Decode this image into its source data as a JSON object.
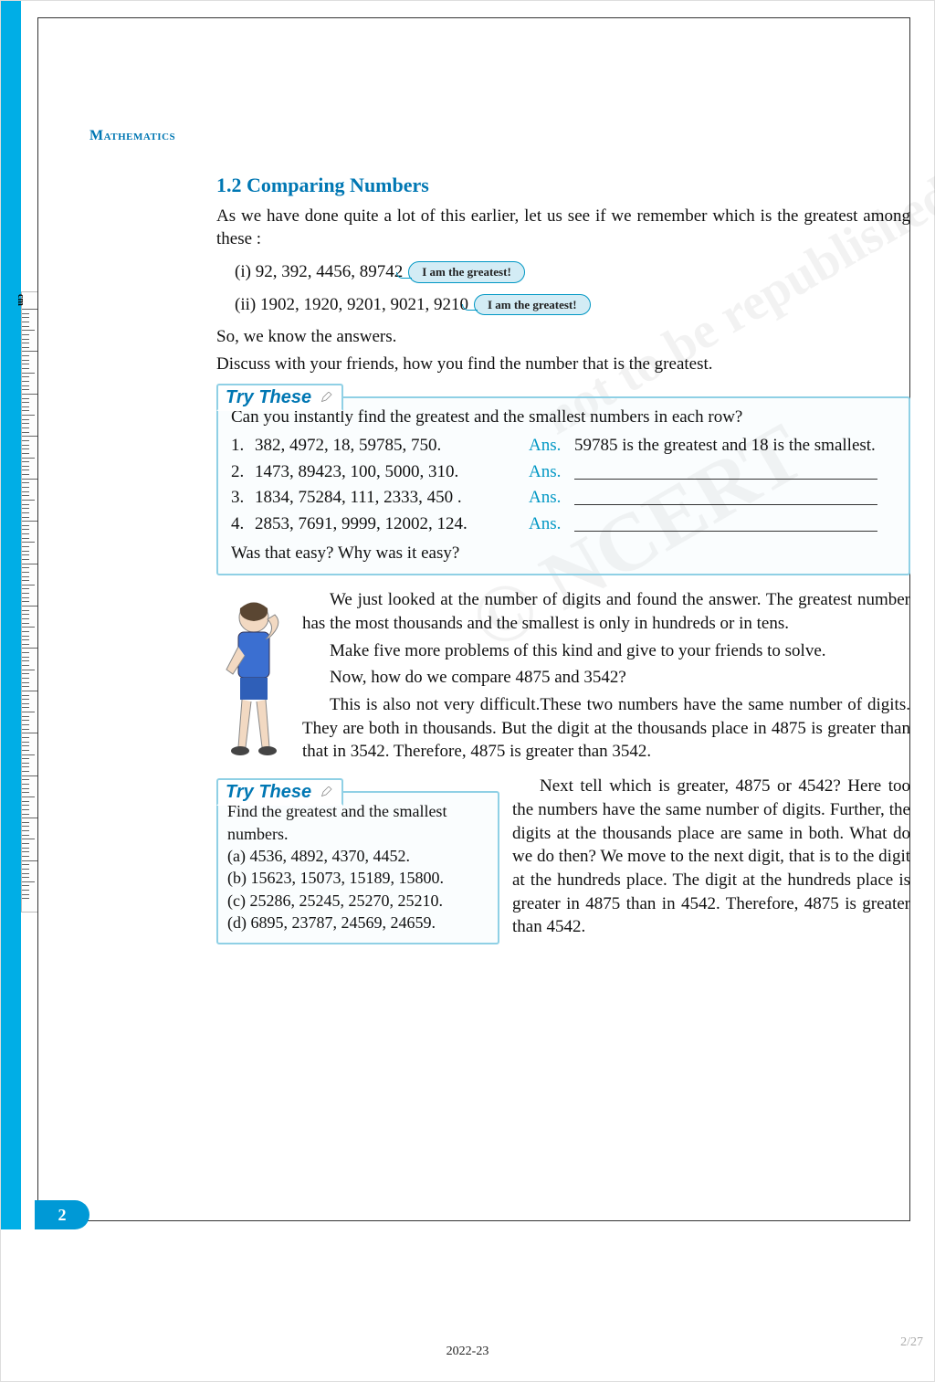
{
  "subject": "Mathematics",
  "section": {
    "number": "1.2",
    "title": "Comparing Numbers"
  },
  "intro": "As we have done quite a lot of this earlier, let us see if we remember which is the greatest among these :",
  "examples": [
    {
      "label": "(i)",
      "numbers": "92, 392, 4456, 89742",
      "bubble": "I am the greatest!"
    },
    {
      "label": "(ii)",
      "numbers": "1902, 1920, 9201, 9021, 9210",
      "bubble": "I am the greatest!"
    }
  ],
  "para_after": "So, we know the answers.",
  "para_discuss": "Discuss with your friends, how you find the number that is the greatest.",
  "try1": {
    "heading": "Try These",
    "q": "Can you instantly find the greatest and the smallest numbers in each row?",
    "rows": [
      {
        "n": "1.",
        "text": "382, 4972, 18, 59785, 750.",
        "ans": "59785 is the greatest and 18 is the smallest."
      },
      {
        "n": "2.",
        "text": "1473, 89423, 100, 5000, 310.",
        "ans": ""
      },
      {
        "n": "3.",
        "text": "1834, 75284, 111, 2333, 450 .",
        "ans": ""
      },
      {
        "n": "4.",
        "text": "2853, 7691, 9999, 12002, 124.",
        "ans": ""
      }
    ],
    "ans_label": "Ans.",
    "closing": "Was that easy? Why was it easy?"
  },
  "body": {
    "p1": "We just looked at the number of digits and found the answer. The greatest number has the most thousands and the smallest is only in hundreds or in tens.",
    "p2": "Make five more problems of this kind and give to your friends to solve.",
    "p3": "Now, how do we compare 4875 and 3542?",
    "p4": "This is also not very difficult.These two numbers have the same number of digits. They are both in thousands. But the digit at the thousands place in 4875 is greater than that in 3542. Therefore, 4875 is greater than 3542.",
    "p5": "Next tell which is greater, 4875 or 4542? Here too the numbers have the same number of digits. Further, the digits at the thousands place are same in both. What do we do then? We move to the next digit, that is to the digit at the hundreds place. The digit at the hundreds place is greater in 4875 than in 4542. Therefore, 4875 is greater than 4542."
  },
  "try2": {
    "heading": "Try These",
    "q": "Find the greatest and the smallest numbers.",
    "items": [
      "(a) 4536, 4892, 4370, 4452.",
      "(b) 15623, 15073, 15189, 15800.",
      "(c) 25286, 25245, 25270, 25210.",
      "(d) 6895, 23787, 24569, 24659."
    ]
  },
  "page_number": "2",
  "year": "2022-23",
  "footer_page": "2/27",
  "ruler_label": "cm",
  "colors": {
    "cyan_strip": "#00aee6",
    "heading": "#0077b3",
    "bubble_border": "#0097c4",
    "bubble_fill": "#d3ecf5",
    "try_border": "#8fd0e5",
    "ans_label": "#0097c4"
  }
}
